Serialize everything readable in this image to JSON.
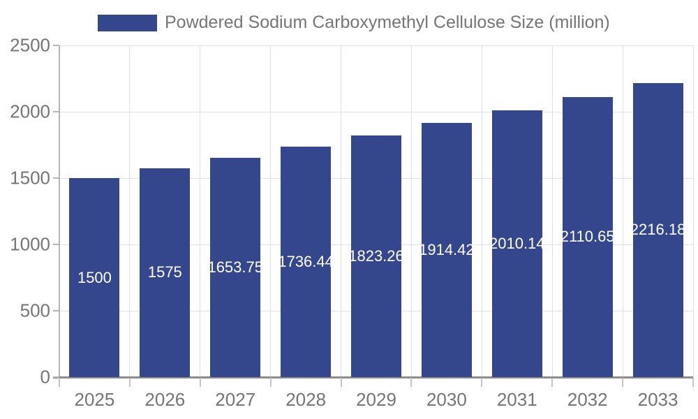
{
  "legend": {
    "label": "Powdered Sodium Carboxymethyl Cellulose Size (million)"
  },
  "chart_data": {
    "type": "bar",
    "title": "",
    "categories": [
      "2025",
      "2026",
      "2027",
      "2028",
      "2029",
      "2030",
      "2031",
      "2032",
      "2033"
    ],
    "series": [
      {
        "name": "Powdered Sodium Carboxymethyl Cellulose Size (million)",
        "values": [
          1500,
          1575,
          1653.75,
          1736.44,
          1823.26,
          1914.42,
          2010.14,
          2110.65,
          2216.18
        ],
        "color": "#35478C"
      }
    ],
    "value_labels": [
      "1500",
      "1575",
      "1653.75",
      "1736.44",
      "1823.26",
      "1914.42",
      "2010.14",
      "2110.65",
      "2216.18"
    ],
    "xlabel": "",
    "ylabel": "",
    "ylim": [
      0,
      2500
    ],
    "y_ticks": [
      0,
      500,
      1000,
      1500,
      2000,
      2500
    ],
    "grid": true,
    "legend_position": "top",
    "colors": {
      "bar": "#35478C",
      "value_label": "#ffffff",
      "axis_text": "#757575",
      "grid_line": "#e0e0e0",
      "x_axis_line": "#8c8c8c",
      "y_axis_line": "#b5b5b5"
    }
  }
}
